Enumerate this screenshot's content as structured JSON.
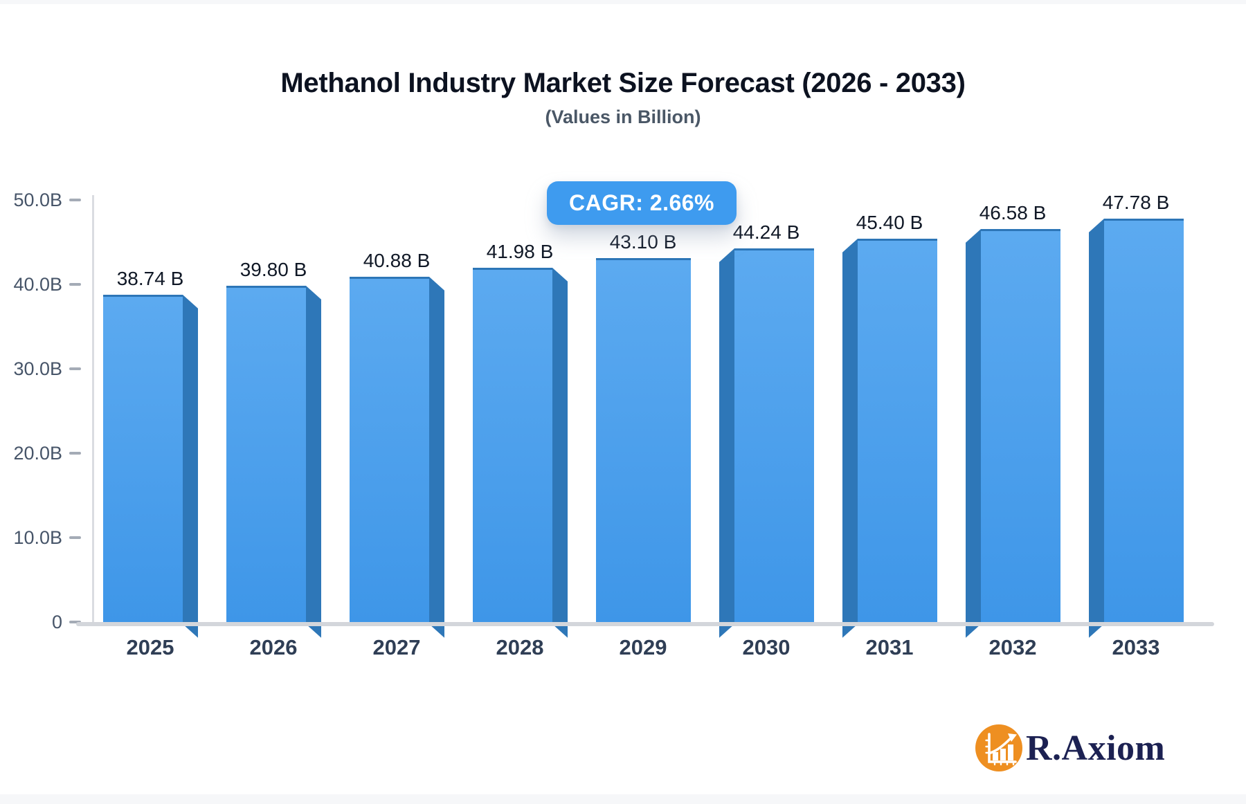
{
  "header": {
    "title": "Methanol Industry Market Size Forecast (2026 - 2033)",
    "subtitle": "(Values in Billion)"
  },
  "badge": {
    "label": "CAGR: 2.66%",
    "background": "#3e9bef",
    "text_color": "#ffffff"
  },
  "chart_data": {
    "type": "bar",
    "title": "Methanol Industry Market Size Forecast (2026 - 2033)",
    "subtitle": "(Values in Billion)",
    "categories": [
      "2025",
      "2026",
      "2027",
      "2028",
      "2029",
      "2030",
      "2031",
      "2032",
      "2033"
    ],
    "values": [
      38.74,
      39.8,
      40.88,
      41.98,
      43.1,
      44.24,
      45.4,
      46.58,
      47.78
    ],
    "value_labels": [
      "38.74 B",
      "39.80 B",
      "40.88 B",
      "41.98 B",
      "43.10 B",
      "44.24 B",
      "45.40 B",
      "46.58 B",
      "47.78 B"
    ],
    "annotation": "CAGR: 2.66%",
    "xlabel": "",
    "ylabel": "",
    "ylim": [
      0,
      50
    ],
    "grid": false,
    "legend": "none",
    "y_ticks": [
      {
        "label": "50.0B",
        "value": 50
      },
      {
        "label": "40.0B",
        "value": 40
      },
      {
        "label": "30.0B",
        "value": 30
      },
      {
        "label": "20.0B",
        "value": 20
      },
      {
        "label": "10.0B",
        "value": 10
      },
      {
        "label": "0",
        "value": 0
      }
    ],
    "colors": {
      "bar_front_top": "#5caaf0",
      "bar_front_bottom": "#3e96e8",
      "bar_side": "#2e77b8",
      "bar_top_edge": "#2d76b7",
      "axis_line": "#dadce1",
      "baseline": "#d3d6db",
      "tick": "#a4abb6",
      "tick_label": "#475569",
      "category_label": "#2f3e55",
      "value_label": "#101826"
    }
  },
  "logo": {
    "text": "R.Axiom",
    "icon": "growth-chart-icon",
    "circle_color": "#ee8f21",
    "icon_glyph_color": "#ffffff",
    "text_color": "#1c2152"
  }
}
